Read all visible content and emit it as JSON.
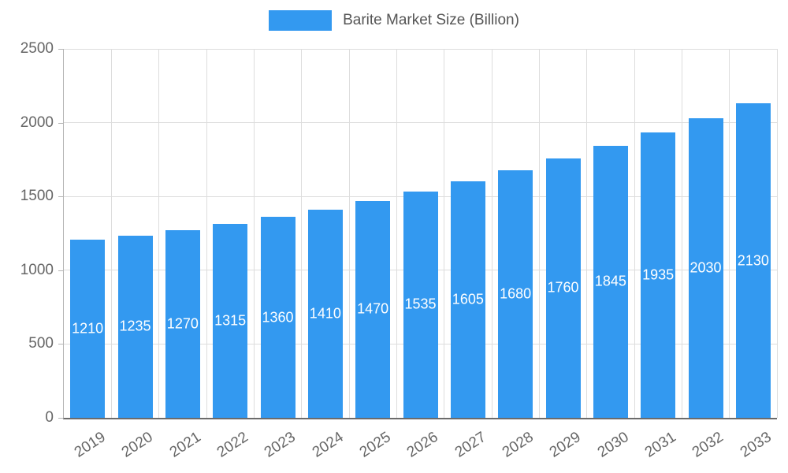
{
  "legend": {
    "label": "Barite Market Size (Billion)"
  },
  "colors": {
    "bar": "#3399f0",
    "grid": "#dddddd",
    "axis_line": "#6b6b6b",
    "axis_line_light": "#b5b5b5",
    "tick_label": "#666666",
    "value_label": "#ffffff",
    "legend_label": "#555555",
    "background": "#ffffff"
  },
  "chart_data": {
    "type": "bar",
    "title": "Barite Market Size (Billion)",
    "categories": [
      "2019",
      "2020",
      "2021",
      "2022",
      "2023",
      "2024",
      "2025",
      "2026",
      "2027",
      "2028",
      "2029",
      "2030",
      "2031",
      "2032",
      "2033"
    ],
    "values": [
      1210,
      1235,
      1270,
      1315,
      1360,
      1410,
      1470,
      1535,
      1605,
      1680,
      1760,
      1845,
      1935,
      2030,
      2130
    ],
    "xlabel": "",
    "ylabel": "",
    "ylim": [
      0,
      2500
    ],
    "yticks": [
      0,
      500,
      1000,
      1500,
      2000,
      2500
    ],
    "grid": true,
    "legend_position": "top",
    "value_labels": "inside-center-white"
  }
}
